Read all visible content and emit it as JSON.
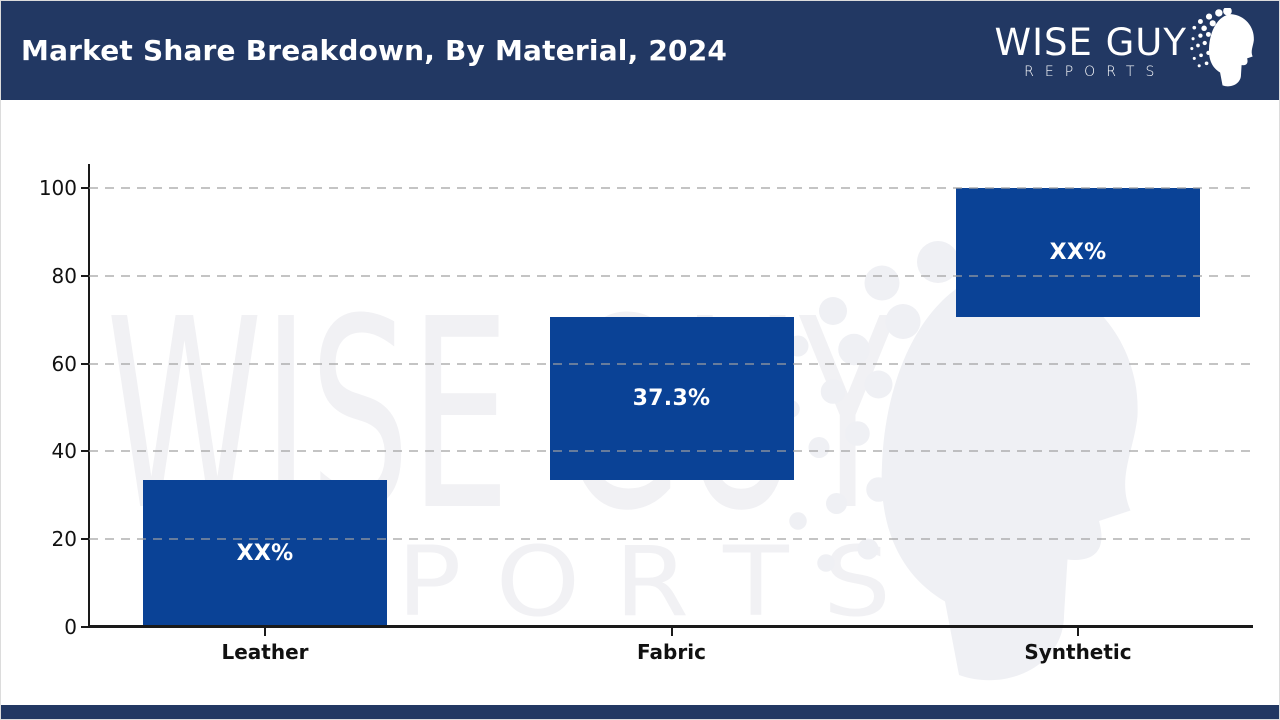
{
  "header": {
    "title": "Market Share Breakdown, By Material, 2024",
    "logo": {
      "line1": "WISE GUY",
      "line2": "REPORTS"
    }
  },
  "watermark": {
    "line1": "WISE GUY",
    "line2": "R E P O R T S"
  },
  "chart_data": {
    "type": "bar",
    "subtype": "waterfall",
    "title": "Market Share Breakdown, By Material, 2024",
    "categories": [
      "Leather",
      "Fabric",
      "Synthetic"
    ],
    "segments": [
      {
        "category": "Leather",
        "start": 0,
        "end": 33.4,
        "label": "XX%"
      },
      {
        "category": "Fabric",
        "start": 33.4,
        "end": 70.7,
        "label": "37.3%"
      },
      {
        "category": "Synthetic",
        "start": 70.7,
        "end": 100,
        "label": "XX%"
      }
    ],
    "yticks": [
      0,
      20,
      40,
      60,
      80,
      100
    ],
    "ylim": [
      0,
      105
    ],
    "grid": "horizontal-dashed",
    "legend": null,
    "bar_color": "#0a4296",
    "value_label_color": "#ffffff",
    "axis_color": "#1a1a1a"
  },
  "colors": {
    "header_bg": "#223863",
    "footer_bg": "#223863",
    "watermark": "#f1f1f4"
  }
}
